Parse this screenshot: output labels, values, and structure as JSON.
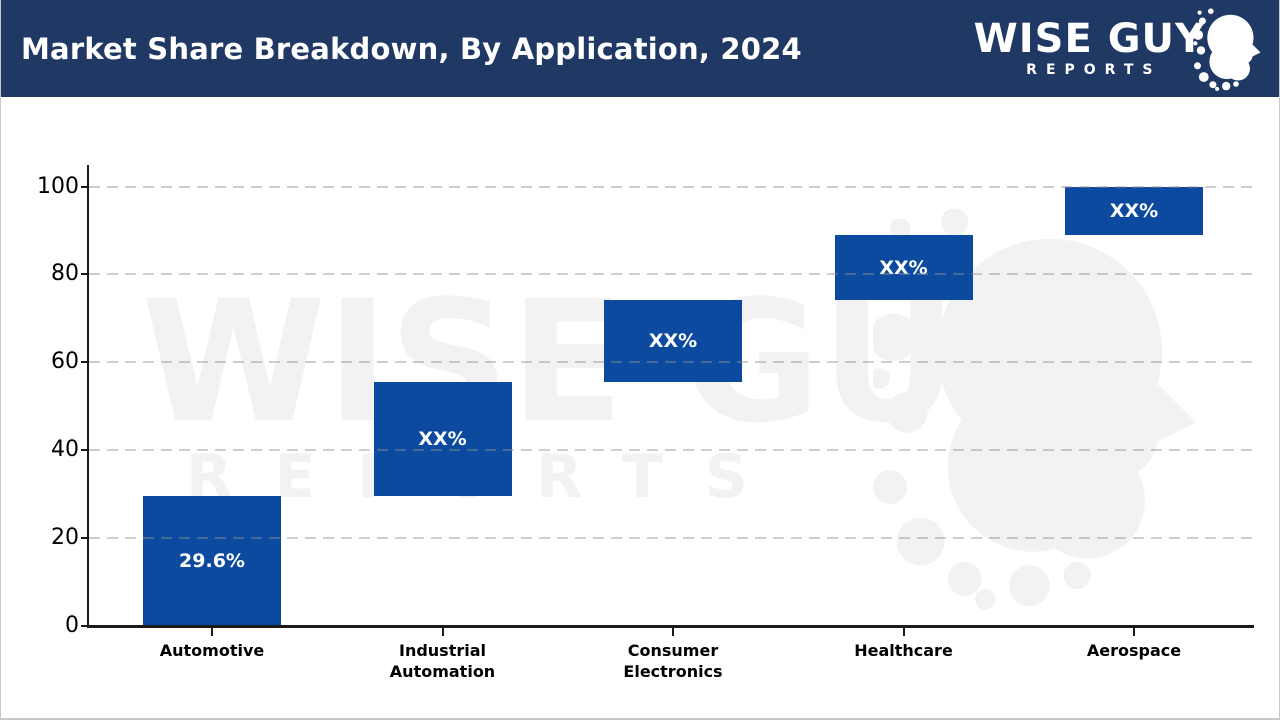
{
  "header": {
    "title": "Market Share Breakdown, By Application, 2024",
    "bg_color": "#203864",
    "logo": {
      "line1": "WISE GUY",
      "line2": "REPORTS"
    }
  },
  "watermark": {
    "line1": "WISE GUY",
    "line2": "REPORTS"
  },
  "chart_data": {
    "type": "bar",
    "subtype": "waterfall-floating-bars",
    "title": "Market Share Breakdown, By Application, 2024",
    "xlabel": "",
    "ylabel": "",
    "ylim": [
      0,
      100
    ],
    "yticks": [
      0,
      20,
      40,
      60,
      80,
      100
    ],
    "grid": "horizontal-dashed",
    "legend": "none",
    "bar_color": "#0b4a9e",
    "bar_label_color": "#ffffff",
    "categories": [
      "Automotive",
      "Industrial Automation",
      "Consumer Electronics",
      "Healthcare",
      "Aerospace"
    ],
    "segments": [
      {
        "category": "Automotive",
        "lines": [
          "Automotive"
        ],
        "start": 0,
        "end": 29.6,
        "value": 29.6,
        "label": "29.6%"
      },
      {
        "category": "Industrial Automation",
        "lines": [
          "Industrial",
          "Automation"
        ],
        "start": 29.6,
        "end": 55.5,
        "value": 25.9,
        "label": "XX%"
      },
      {
        "category": "Consumer Electronics",
        "lines": [
          "Consumer",
          "Electronics"
        ],
        "start": 55.5,
        "end": 74.1,
        "value": 18.6,
        "label": "XX%"
      },
      {
        "category": "Healthcare",
        "lines": [
          "Healthcare"
        ],
        "start": 74.1,
        "end": 88.9,
        "value": 14.8,
        "label": "XX%"
      },
      {
        "category": "Aerospace",
        "lines": [
          "Aerospace"
        ],
        "start": 88.9,
        "end": 100,
        "value": 11.1,
        "label": "XX%"
      }
    ]
  }
}
